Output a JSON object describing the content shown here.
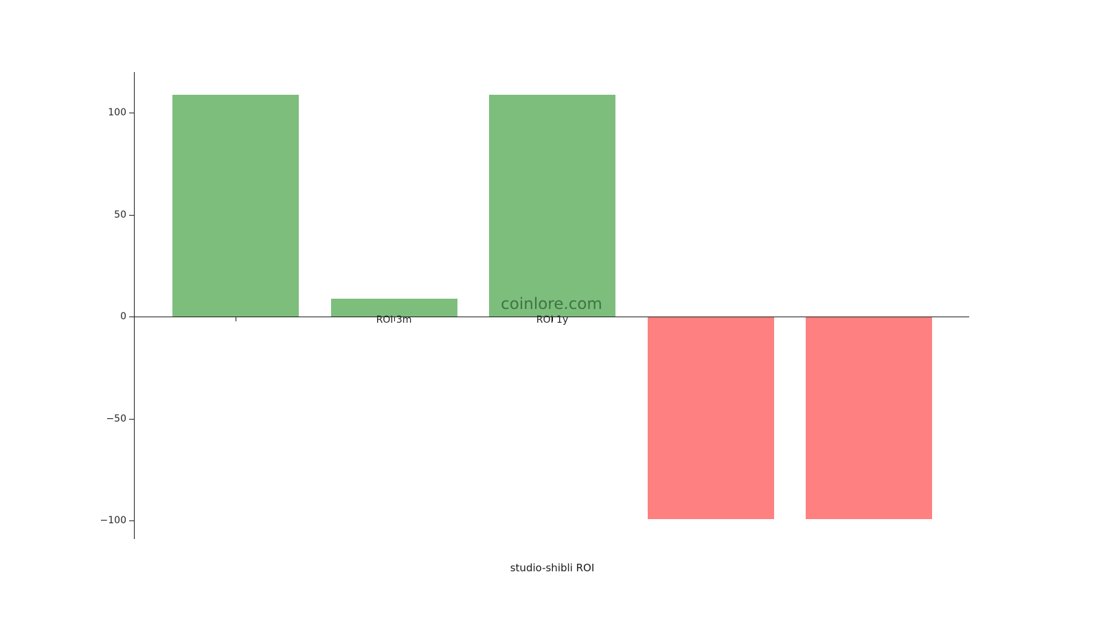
{
  "watermark": {
    "text": "coinlore.com",
    "color": "#3d7540"
  },
  "colors": {
    "positive": "#7dbe7d",
    "negative": "#ff8080",
    "axis": "#1a1a1a",
    "tick_text": "#262626"
  },
  "chart_data": {
    "type": "bar",
    "title": "studio-shibli ROI",
    "categories": [
      "",
      "ROI 3m",
      "ROI 1y",
      "",
      ""
    ],
    "values": [
      109,
      9,
      109,
      -99,
      -99
    ],
    "bar_colors": [
      "#7dbe7d",
      "#7dbe7d",
      "#7dbe7d",
      "#ff8080",
      "#ff8080"
    ],
    "xlabel": "",
    "ylabel": "",
    "ylim": [
      -109,
      120
    ],
    "yticks": [
      100,
      50,
      0,
      -50,
      -100
    ],
    "ytick_labels": [
      "100",
      "50",
      "0",
      "−50",
      "−100"
    ],
    "xtick_indices": [
      0,
      1,
      2
    ],
    "grid": false,
    "legend": "none",
    "watermark": "coinlore.com"
  }
}
